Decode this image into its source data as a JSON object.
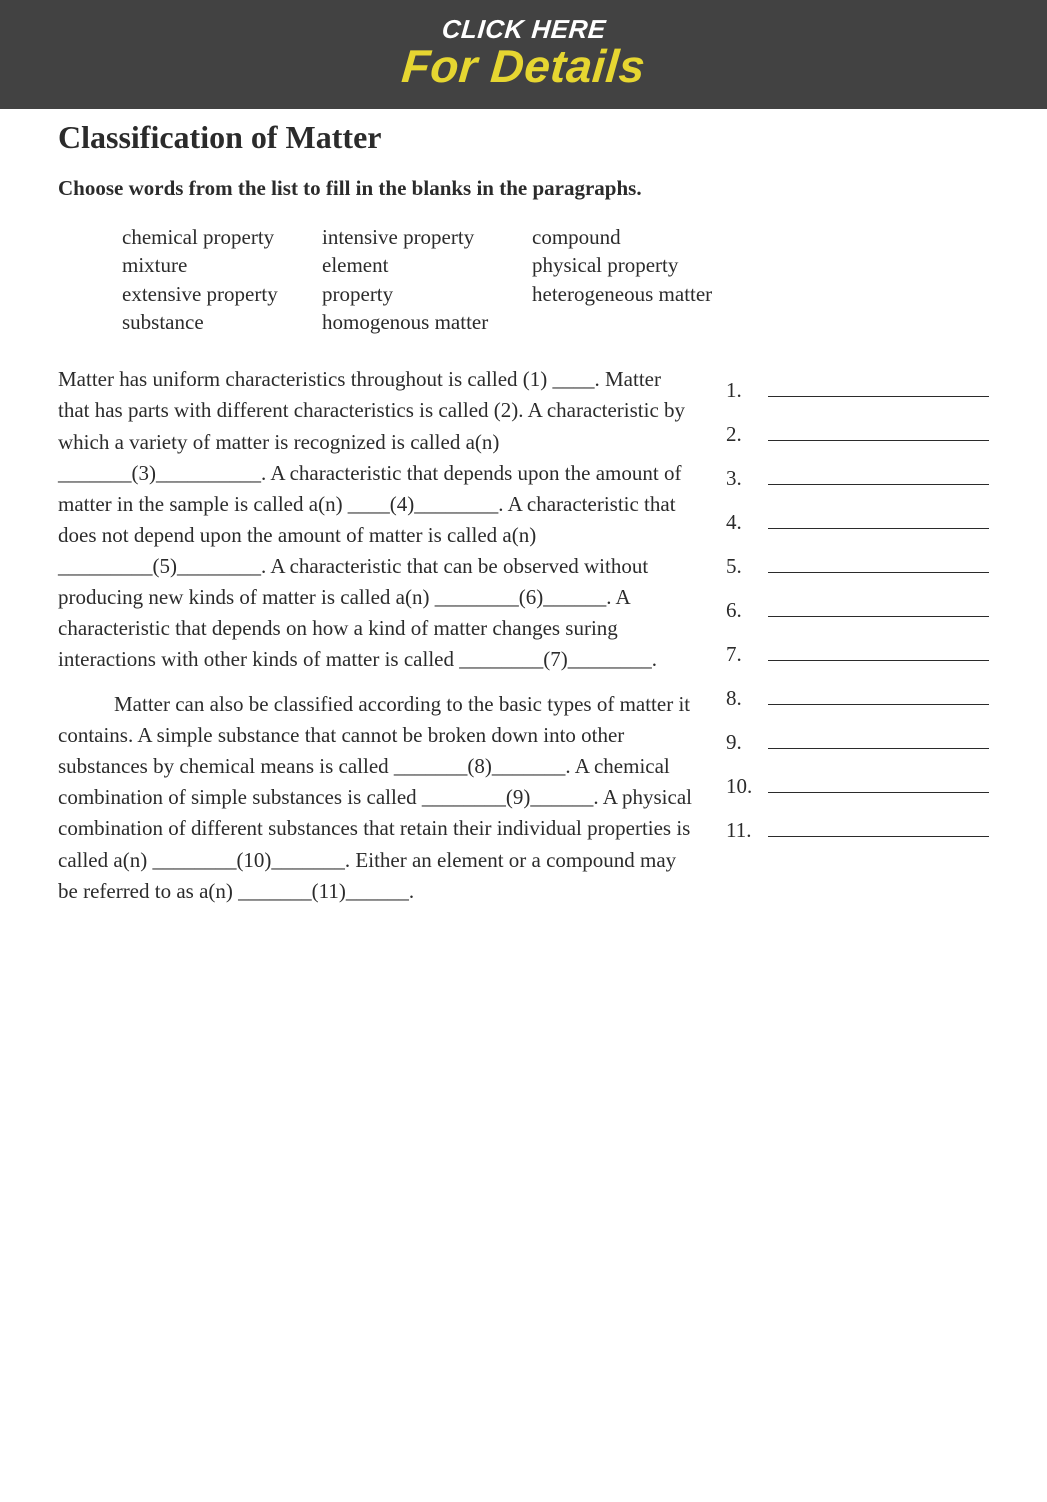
{
  "banner": {
    "line1": "CLICK HERE",
    "line2": "For Details"
  },
  "title": "Classification of Matter",
  "instructions": "Choose words from the list to fill in the blanks in the paragraphs.",
  "word_bank": {
    "col1": [
      "chemical property",
      "mixture",
      "extensive property",
      "substance"
    ],
    "col2": [
      "intensive property",
      "element",
      "property",
      "homogenous matter"
    ],
    "col3": [
      "compound",
      "physical property",
      "heterogeneous matter"
    ]
  },
  "paragraph1": "Matter has uniform characteristics throughout is called  (1) ____.  Matter that has parts with different characteristics is called (2).  A characteristic by which a variety of matter is recognized is called a(n) _______(3)__________.  A characteristic that depends upon the amount of matter in the sample is called a(n) ____(4)________.  A characteristic that does not depend upon the amount of matter is called a(n) _________(5)________.  A characteristic that can be observed without producing new kinds of matter is called a(n) ________(6)______.  A characteristic that depends on how a kind of matter changes suring interactions with other kinds of matter is called ________(7)________.",
  "paragraph2_leading_indent": true,
  "paragraph2": "Matter can also be classified according to the basic types of matter it contains.  A simple substance that cannot be broken down into other substances by chemical means is called _______(8)_______.  A chemical combination of simple substances is called ________(9)______.  A physical combination of different substances that retain their individual properties is called a(n) ________(10)_______.  Either an element or a compound may be referred to as a(n) _______(11)______.",
  "answer_numbers": [
    "1.",
    "2.",
    "3.",
    "4.",
    "5.",
    "6.",
    "7.",
    "8.",
    "9.",
    "10.",
    "11."
  ],
  "colors": {
    "banner_bg": "#424242",
    "banner_text1": "#ffffff",
    "banner_text2": "#e6d631",
    "page_bg": "#ffffff",
    "text": "#2b2b2b",
    "line": "#2b2b2b"
  }
}
